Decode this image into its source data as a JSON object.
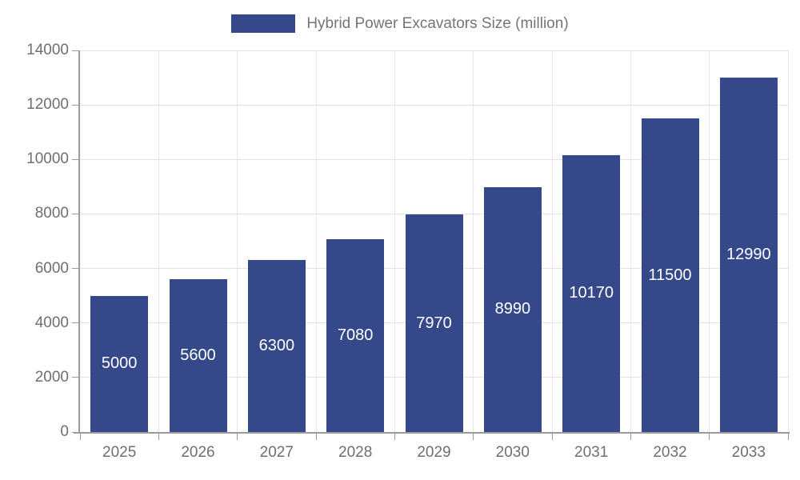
{
  "legend": {
    "label": "Hybrid Power Excavators Size (million)",
    "swatch_color": "#35498a"
  },
  "chart_data": {
    "type": "bar",
    "title": "Hybrid Power Excavators Size (million)",
    "series_name": "Hybrid Power Excavators Size (million)",
    "categories": [
      "2025",
      "2026",
      "2027",
      "2028",
      "2029",
      "2030",
      "2031",
      "2032",
      "2033"
    ],
    "values": [
      5000,
      5600,
      6300,
      7080,
      7970,
      8990,
      10170,
      11500,
      12990
    ],
    "xlabel": "",
    "ylabel": "",
    "ylim": [
      0,
      14000
    ],
    "y_ticks": [
      0,
      2000,
      4000,
      6000,
      8000,
      10000,
      12000,
      14000
    ],
    "grid": true,
    "legend_position": "top",
    "bar_color": "#35498a",
    "bar_label_color": "#ffffff",
    "axis_color": "#9a9a9a",
    "grid_color": "#e2e2e9",
    "tick_label_color": "#6f6f6f"
  }
}
